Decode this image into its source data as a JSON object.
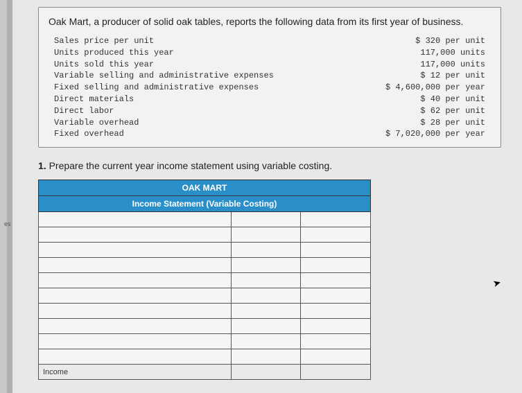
{
  "intro": "Oak Mart, a producer of solid oak tables, reports the following data from its first year of business.",
  "items": [
    {
      "label": "Sales price per unit",
      "value": "$ 320 per unit"
    },
    {
      "label": "Units produced this year",
      "value": "117,000 units"
    },
    {
      "label": "Units sold this year",
      "value": "117,000 units"
    },
    {
      "label": "Variable selling and administrative expenses",
      "value": "$ 12 per unit"
    },
    {
      "label": "Fixed selling and administrative expenses",
      "value": "$ 4,600,000 per year"
    },
    {
      "label": "Direct materials",
      "value": "$ 40 per unit"
    },
    {
      "label": "Direct labor",
      "value": "$ 62 per unit"
    },
    {
      "label": "Variable overhead",
      "value": "$ 28 per unit"
    },
    {
      "label": "Fixed overhead",
      "value": "$ 7,020,000 per year"
    }
  ],
  "question_num": "1.",
  "question_text": " Prepare the current year income statement using variable costing.",
  "table_header1": "OAK MART",
  "table_header2": "Income Statement (Variable Costing)",
  "income_label": "Income",
  "tab_label": "es",
  "colors": {
    "header_bg": "#2a8fc9",
    "page_bg": "#e8e8e6",
    "body_bg": "#c8c8c6"
  }
}
